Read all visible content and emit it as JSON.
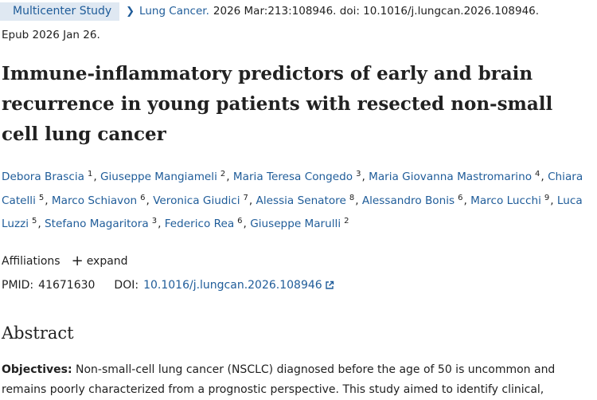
{
  "header": {
    "badge": "Multicenter Study",
    "source_journal": "Lung Cancer.",
    "source_rest": "2026 Mar:213:108946. doi: 10.1016/j.lungcan.2026.108946.",
    "epub": "Epub 2026 Jan 26."
  },
  "article": {
    "title": "Immune-inflammatory predictors of early and brain recurrence in young patients with resected non-small cell lung cancer"
  },
  "authors": [
    {
      "name": "Debora Brascia",
      "aff": "1"
    },
    {
      "name": "Giuseppe Mangiameli",
      "aff": "2"
    },
    {
      "name": "Maria Teresa Congedo",
      "aff": "3"
    },
    {
      "name": "Maria Giovanna Mastromarino",
      "aff": "4"
    },
    {
      "name": "Chiara Catelli",
      "aff": "5"
    },
    {
      "name": "Marco Schiavon",
      "aff": "6"
    },
    {
      "name": "Veronica Giudici",
      "aff": "7"
    },
    {
      "name": "Alessia Senatore",
      "aff": "8"
    },
    {
      "name": "Alessandro Bonis",
      "aff": "6"
    },
    {
      "name": "Marco Lucchi",
      "aff": "9"
    },
    {
      "name": "Luca Luzzi",
      "aff": "5"
    },
    {
      "name": "Stefano Magaritora",
      "aff": "3"
    },
    {
      "name": "Federico Rea",
      "aff": "6"
    },
    {
      "name": "Giuseppe Marulli",
      "aff": "2"
    }
  ],
  "affiliations": {
    "label": "Affiliations",
    "expand": "expand"
  },
  "ids": {
    "pmid_label": "PMID:",
    "pmid": "41671630",
    "doi_label": "DOI:",
    "doi": "10.1016/j.lungcan.2026.108946"
  },
  "abstract": {
    "heading": "Abstract",
    "objectives_label": "Objectives:",
    "objectives_text": "Non-small-cell lung cancer (NSCLC) diagnosed before the age of 50 is uncommon and remains poorly characterized from a prognostic perspective. This study aimed to identify clinical,"
  },
  "colors": {
    "link": "#1f5c99",
    "badge_bg": "#dfe8f2",
    "text": "#212121"
  },
  "icons": {
    "breadcrumb": "chevron-right-icon",
    "expand": "plus-icon",
    "external": "external-link-icon"
  }
}
